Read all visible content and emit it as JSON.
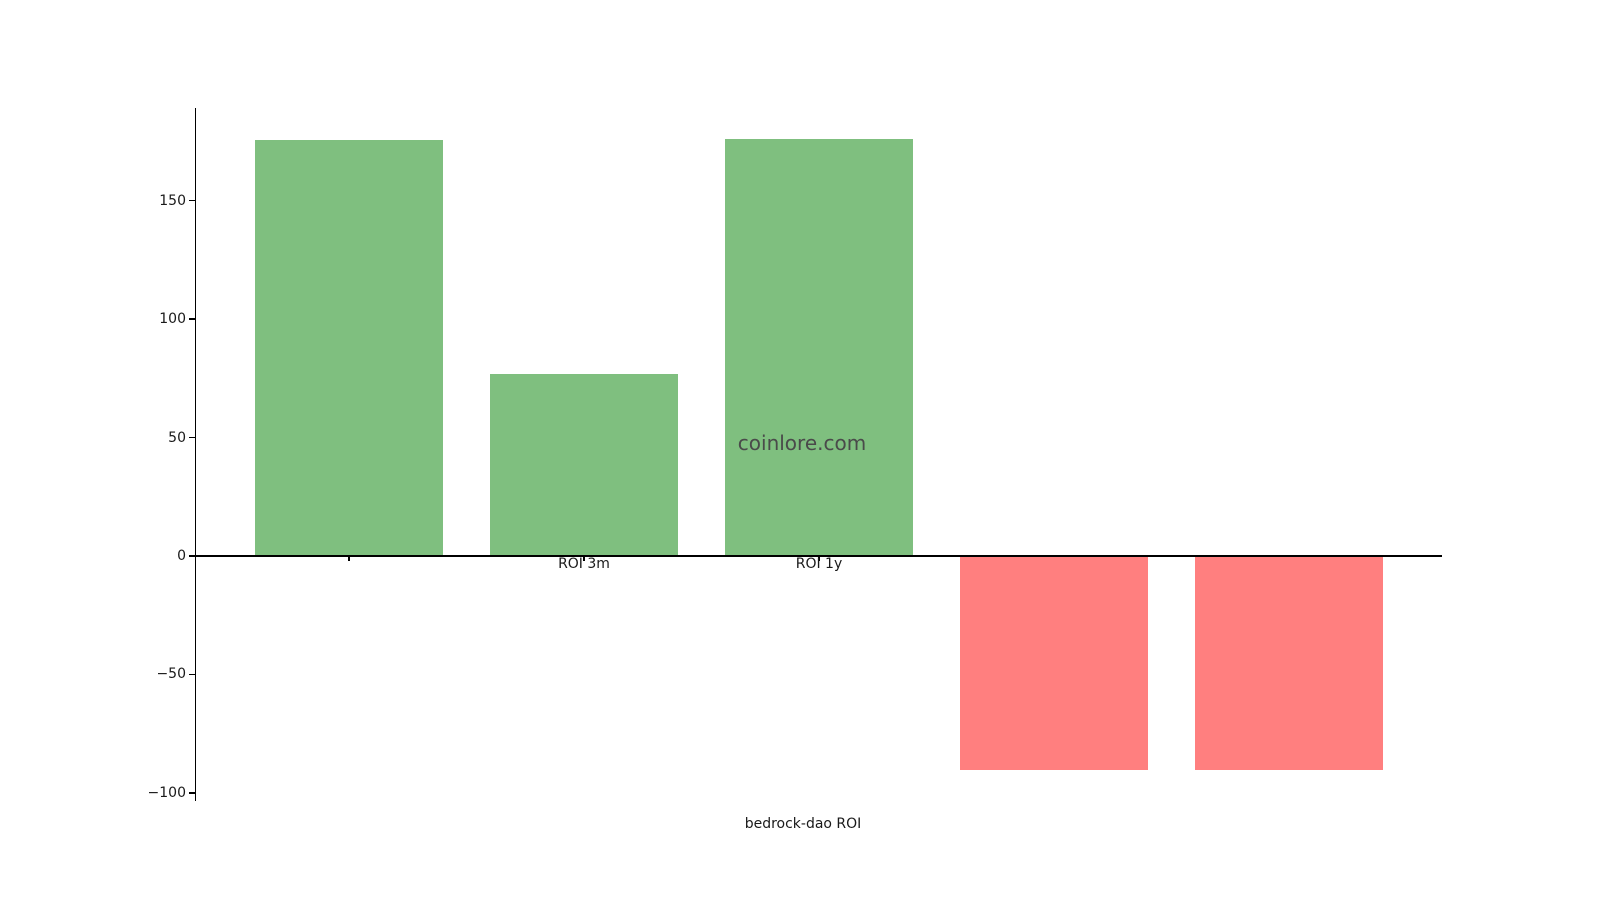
{
  "chart_data": {
    "type": "bar",
    "title": "",
    "xlabel": "bedrock-dao ROI",
    "watermark": "coinlore.com",
    "categories": [
      "",
      "ROI 3m",
      "ROI 1y",
      "",
      ""
    ],
    "values": [
      175.6,
      76.8,
      176.0,
      -90.3,
      -90.3
    ],
    "bar_colors": [
      "#7fbf7f",
      "#7fbf7f",
      "#7fbf7f",
      "#ff7f7f",
      "#ff7f7f"
    ],
    "positive_color": "#7fbf7f",
    "negative_color": "#ff7f7f",
    "yticks": [
      150,
      100,
      50,
      0,
      -50,
      -100
    ],
    "ytick_labels": [
      "150",
      "100",
      "50",
      "0",
      "−50",
      "−100"
    ],
    "ylim": [
      -103.6,
      189.3
    ],
    "xticks_shown_at": [
      0,
      1,
      2
    ],
    "grid": false,
    "legend": null,
    "background_color": "#ffffff",
    "axis_color": "#000000",
    "text_color": "#1a1a1a",
    "watermark_color": "#4a4a4a"
  }
}
